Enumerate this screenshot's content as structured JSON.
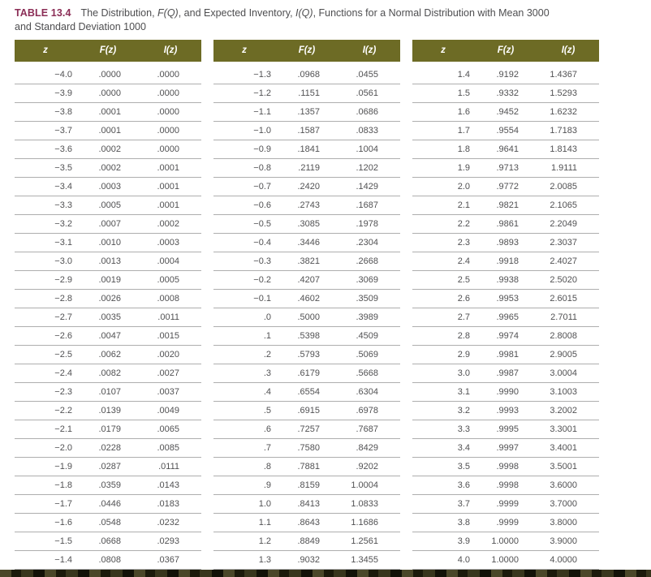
{
  "caption": {
    "tag": "TABLE 13.4",
    "p1": "The Distribution, ",
    "fq": "F(Q)",
    "p2": ", and Expected Inventory, ",
    "iq": "I(Q)",
    "p3": ", Functions for a Normal Distribution with Mean 3000",
    "line2": "and Standard Deviation 1000"
  },
  "colors": {
    "header_bar": "#6d6b25",
    "caption_tag": "#8b2d56",
    "body_text": "#515153",
    "row_rule": "#aeaeae"
  },
  "table": {
    "columns": [
      "z",
      "F(z)",
      "I(z)"
    ],
    "groups": [
      {
        "rows": [
          [
            "−4.0",
            ".0000",
            ".0000"
          ],
          [
            "−3.9",
            ".0000",
            ".0000"
          ],
          [
            "−3.8",
            ".0001",
            ".0000"
          ],
          [
            "−3.7",
            ".0001",
            ".0000"
          ],
          [
            "−3.6",
            ".0002",
            ".0000"
          ],
          [
            "−3.5",
            ".0002",
            ".0001"
          ],
          [
            "−3.4",
            ".0003",
            ".0001"
          ],
          [
            "−3.3",
            ".0005",
            ".0001"
          ],
          [
            "−3.2",
            ".0007",
            ".0002"
          ],
          [
            "−3.1",
            ".0010",
            ".0003"
          ],
          [
            "−3.0",
            ".0013",
            ".0004"
          ],
          [
            "−2.9",
            ".0019",
            ".0005"
          ],
          [
            "−2.8",
            ".0026",
            ".0008"
          ],
          [
            "−2.7",
            ".0035",
            ".0011"
          ],
          [
            "−2.6",
            ".0047",
            ".0015"
          ],
          [
            "−2.5",
            ".0062",
            ".0020"
          ],
          [
            "−2.4",
            ".0082",
            ".0027"
          ],
          [
            "−2.3",
            ".0107",
            ".0037"
          ],
          [
            "−2.2",
            ".0139",
            ".0049"
          ],
          [
            "−2.1",
            ".0179",
            ".0065"
          ],
          [
            "−2.0",
            ".0228",
            ".0085"
          ],
          [
            "−1.9",
            ".0287",
            ".0111"
          ],
          [
            "−1.8",
            ".0359",
            ".0143"
          ],
          [
            "−1.7",
            ".0446",
            ".0183"
          ],
          [
            "−1.6",
            ".0548",
            ".0232"
          ],
          [
            "−1.5",
            ".0668",
            ".0293"
          ],
          [
            "−1.4",
            ".0808",
            ".0367"
          ]
        ]
      },
      {
        "rows": [
          [
            "−1.3",
            ".0968",
            ".0455"
          ],
          [
            "−1.2",
            ".1151",
            ".0561"
          ],
          [
            "−1.1",
            ".1357",
            ".0686"
          ],
          [
            "−1.0",
            ".1587",
            ".0833"
          ],
          [
            "−0.9",
            ".1841",
            ".1004"
          ],
          [
            "−0.8",
            ".2119",
            ".1202"
          ],
          [
            "−0.7",
            ".2420",
            ".1429"
          ],
          [
            "−0.6",
            ".2743",
            ".1687"
          ],
          [
            "−0.5",
            ".3085",
            ".1978"
          ],
          [
            "−0.4",
            ".3446",
            ".2304"
          ],
          [
            "−0.3",
            ".3821",
            ".2668"
          ],
          [
            "−0.2",
            ".4207",
            ".3069"
          ],
          [
            "−0.1",
            ".4602",
            ".3509"
          ],
          [
            ".0",
            ".5000",
            ".3989"
          ],
          [
            ".1",
            ".5398",
            ".4509"
          ],
          [
            ".2",
            ".5793",
            ".5069"
          ],
          [
            ".3",
            ".6179",
            ".5668"
          ],
          [
            ".4",
            ".6554",
            ".6304"
          ],
          [
            ".5",
            ".6915",
            ".6978"
          ],
          [
            ".6",
            ".7257",
            ".7687"
          ],
          [
            ".7",
            ".7580",
            ".8429"
          ],
          [
            ".8",
            ".7881",
            ".9202"
          ],
          [
            ".9",
            ".8159",
            "1.0004"
          ],
          [
            "1.0",
            ".8413",
            "1.0833"
          ],
          [
            "1.1",
            ".8643",
            "1.1686"
          ],
          [
            "1.2",
            ".8849",
            "1.2561"
          ],
          [
            "1.3",
            ".9032",
            "1.3455"
          ]
        ]
      },
      {
        "rows": [
          [
            "1.4",
            ".9192",
            "1.4367"
          ],
          [
            "1.5",
            ".9332",
            "1.5293"
          ],
          [
            "1.6",
            ".9452",
            "1.6232"
          ],
          [
            "1.7",
            ".9554",
            "1.7183"
          ],
          [
            "1.8",
            ".9641",
            "1.8143"
          ],
          [
            "1.9",
            ".9713",
            "1.9111"
          ],
          [
            "2.0",
            ".9772",
            "2.0085"
          ],
          [
            "2.1",
            ".9821",
            "2.1065"
          ],
          [
            "2.2",
            ".9861",
            "2.2049"
          ],
          [
            "2.3",
            ".9893",
            "2.3037"
          ],
          [
            "2.4",
            ".9918",
            "2.4027"
          ],
          [
            "2.5",
            ".9938",
            "2.5020"
          ],
          [
            "2.6",
            ".9953",
            "2.6015"
          ],
          [
            "2.7",
            ".9965",
            "2.7011"
          ],
          [
            "2.8",
            ".9974",
            "2.8008"
          ],
          [
            "2.9",
            ".9981",
            "2.9005"
          ],
          [
            "3.0",
            ".9987",
            "3.0004"
          ],
          [
            "3.1",
            ".9990",
            "3.1003"
          ],
          [
            "3.2",
            ".9993",
            "3.2002"
          ],
          [
            "3.3",
            ".9995",
            "3.3001"
          ],
          [
            "3.4",
            ".9997",
            "3.4001"
          ],
          [
            "3.5",
            ".9998",
            "3.5001"
          ],
          [
            "3.6",
            ".9998",
            "3.6000"
          ],
          [
            "3.7",
            ".9999",
            "3.7000"
          ],
          [
            "3.8",
            ".9999",
            "3.8000"
          ],
          [
            "3.9",
            "1.0000",
            "3.9000"
          ],
          [
            "4.0",
            "1.0000",
            "4.0000"
          ]
        ]
      }
    ]
  }
}
